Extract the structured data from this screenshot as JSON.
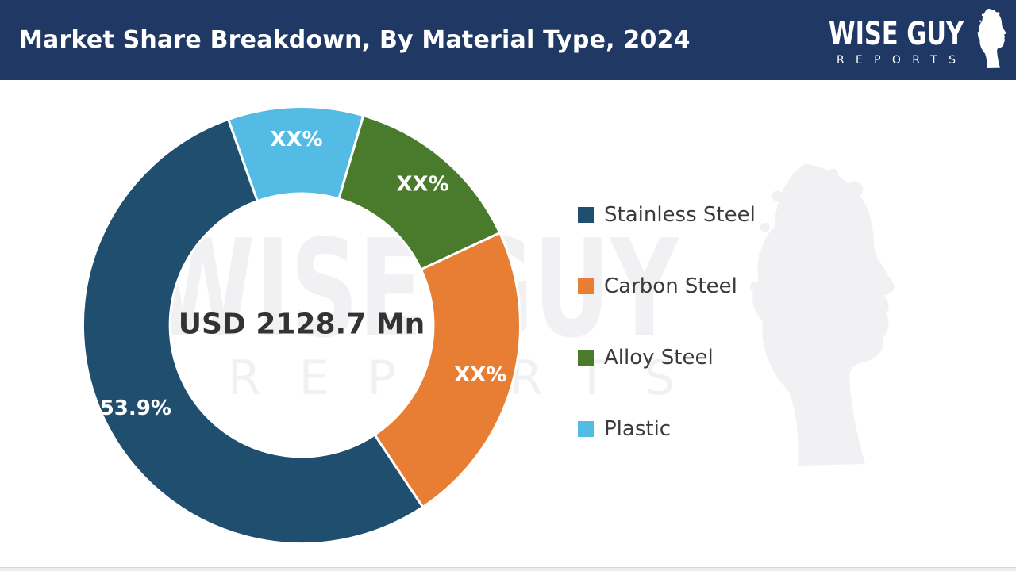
{
  "header": {
    "title": "Market Share Breakdown, By Material Type, 2024",
    "bg_color": "#1f3864",
    "logo": {
      "line1": "WISE GUY",
      "line2": "REPORTS"
    }
  },
  "chart_data": {
    "type": "pie",
    "donut": true,
    "title": "Market Share Breakdown, By Material Type, 2024",
    "center_label": "USD 2128.7 Mn",
    "start_angle_deg": -19.6,
    "legend_position": "right",
    "segments": [
      {
        "name": "Stainless Steel",
        "label": "53.9%",
        "value": 53.9,
        "color": "#1f4e6f"
      },
      {
        "name": "Carbon Steel",
        "label": "XX%",
        "value": 22.6,
        "color": "#e87e34"
      },
      {
        "name": "Alloy Steel",
        "label": "XX%",
        "value": 13.5,
        "color": "#4a7a2b"
      },
      {
        "name": "Plastic",
        "label": "XX%",
        "value": 10.0,
        "color": "#54bce4"
      }
    ]
  },
  "watermark": {
    "line1": "WISE GUY",
    "line2": "REPORTS"
  },
  "colors": {
    "header_bg": "#1f3864",
    "legend_text": "#3a3a3a",
    "center_text": "#333333",
    "watermark": "#f1f1f3",
    "segment_gap": "#ffffff"
  }
}
